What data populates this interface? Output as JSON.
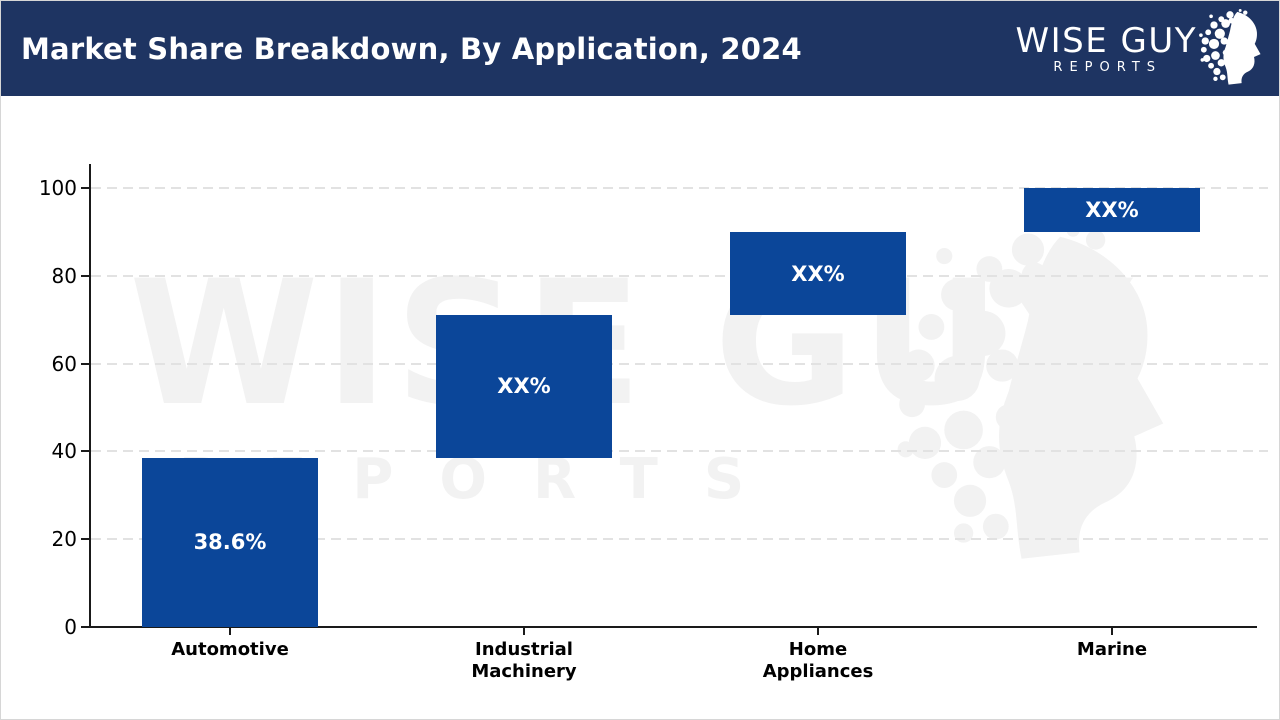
{
  "header": {
    "title": "Market Share Breakdown, By Application, 2024",
    "background_color": "#1e3462",
    "logo": {
      "line1": "WISE GUY",
      "line2": "REPORTS",
      "face_icon": "dotted-head-profile-icon"
    }
  },
  "watermark": {
    "line1": "WISE GUY",
    "line2": "REPORTS",
    "face_icon": "dotted-head-profile-icon",
    "color": "#f2f2f2"
  },
  "chart_data": {
    "type": "bar",
    "subtype": "floating-breakdown-segments",
    "title": "Market Share Breakdown, By Application, 2024",
    "categories": [
      "Automotive",
      "Industrial Machinery",
      "Home Appliances",
      "Marine"
    ],
    "segments": [
      {
        "category": "Automotive",
        "start": 0,
        "end": 38.6,
        "label": "38.6%"
      },
      {
        "category": "Industrial Machinery",
        "start": 38.6,
        "end": 71,
        "label": "XX%"
      },
      {
        "category": "Home Appliances",
        "start": 71,
        "end": 90,
        "label": "XX%"
      },
      {
        "category": "Marine",
        "start": 90,
        "end": 100,
        "label": "XX%"
      }
    ],
    "yticks": [
      0,
      20,
      40,
      60,
      80,
      100
    ],
    "ylim": [
      0,
      105
    ],
    "xlabel": "",
    "ylabel": "",
    "grid": "horizontal-dashed",
    "legend": "none",
    "bar_color": "#0b4699",
    "bar_label_color": "#ffffff",
    "axis_color": "#1a1a1a",
    "grid_color": "#e2e2e2",
    "tick_label_color": "#000000"
  }
}
